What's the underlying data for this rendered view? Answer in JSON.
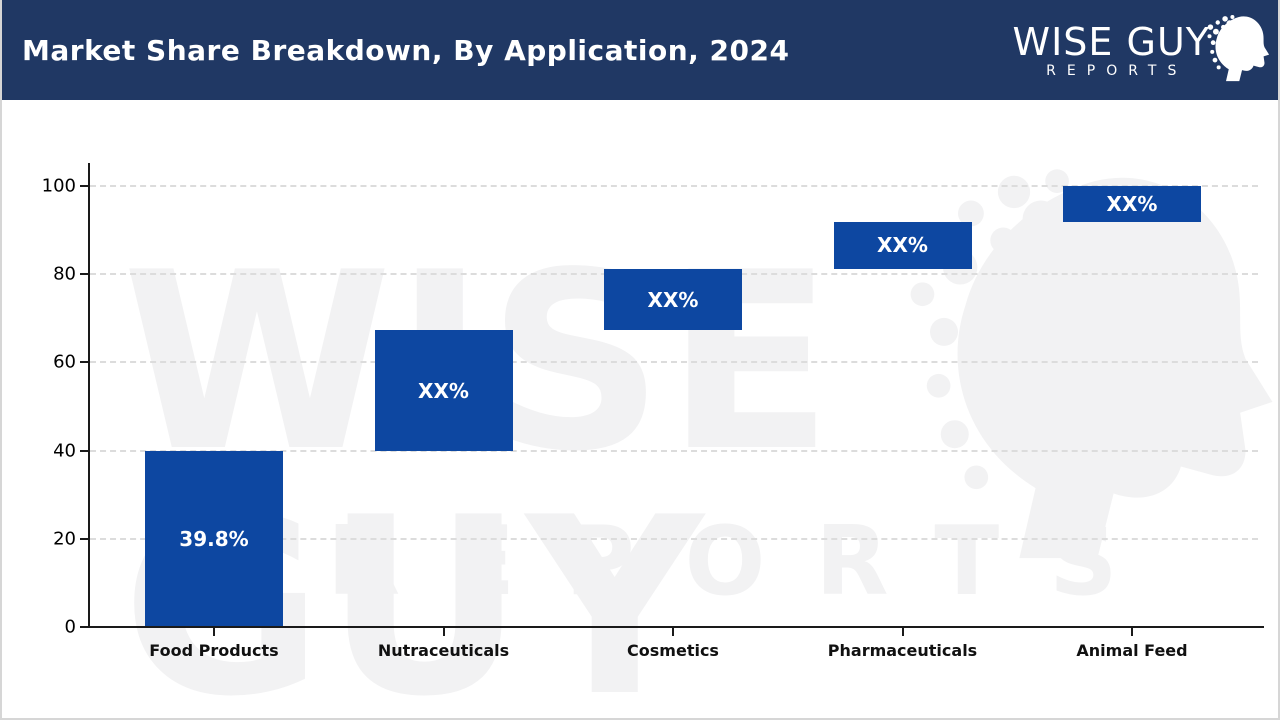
{
  "header": {
    "title": "Market Share Breakdown, By Application, 2024",
    "logo": {
      "line1": "WISE GUY",
      "line2": "REPORTS"
    }
  },
  "watermark": {
    "line1": "WISE GUY",
    "line2": "REPORTS"
  },
  "colors": {
    "header_bg": "#203864",
    "bar": "#0d47a1",
    "bar_label": "#ffffff",
    "grid": "#dcdcdc",
    "axis": "#1a1a1a",
    "watermark": "#f2f2f3"
  },
  "chart_data": {
    "type": "bar",
    "subtype": "floating-waterfall",
    "title": "Market Share Breakdown, By Application, 2024",
    "categories": [
      "Food Products",
      "Nutraceuticals",
      "Cosmetics",
      "Pharmaceuticals",
      "Animal Feed"
    ],
    "segments": [
      {
        "category": "Food Products",
        "start": 0,
        "end": 39.8,
        "label": "39.8%"
      },
      {
        "category": "Nutraceuticals",
        "start": 39.8,
        "end": 67.3,
        "label": "XX%"
      },
      {
        "category": "Cosmetics",
        "start": 67.3,
        "end": 81.2,
        "label": "XX%"
      },
      {
        "category": "Pharmaceuticals",
        "start": 81.2,
        "end": 91.9,
        "label": "XX%"
      },
      {
        "category": "Animal Feed",
        "start": 91.9,
        "end": 100,
        "label": "XX%"
      }
    ],
    "yticks": [
      0,
      20,
      40,
      60,
      80,
      100
    ],
    "ylim": [
      0,
      105
    ],
    "xlabel": "",
    "ylabel": "",
    "grid": "horizontal-dashed",
    "legend": "none"
  }
}
